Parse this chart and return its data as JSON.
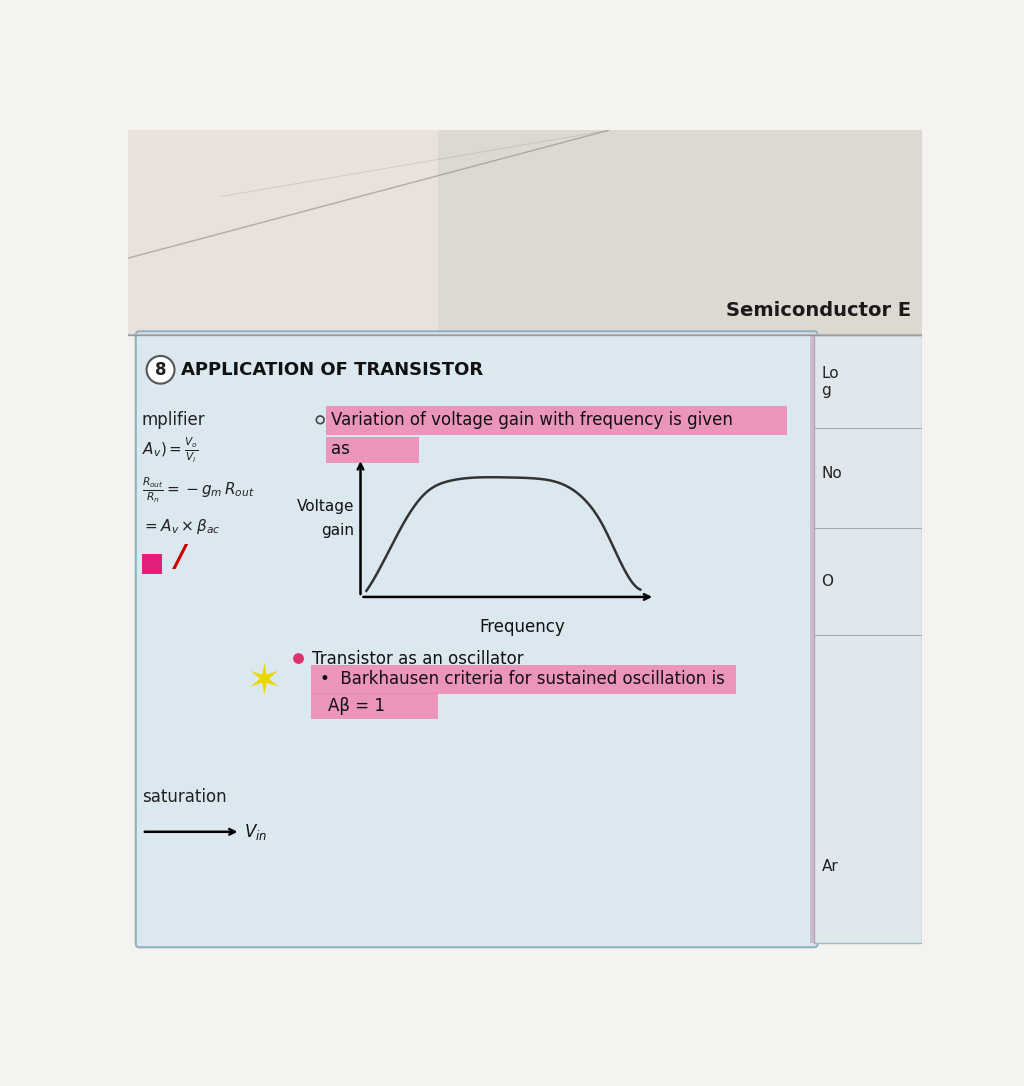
{
  "page_bg_top": "#e8e4de",
  "page_bg_main": "#f5f3f0",
  "header_text": "Semiconductor E",
  "section_num": "8",
  "section_title": "APPLICATION OF TRANSISTOR",
  "highlight_pink": "#f080b0",
  "highlight_yellow": "#f0e040",
  "bullet1_line1": "Variation of voltage gain with frequency is given",
  "bullet1_line2": "as",
  "xlabel": "Frequency",
  "ylabel_line1": "Voltage",
  "ylabel_line2": "gain",
  "bullet2_title": "Transistor as an oscillator",
  "bullet2_sub": "Barkhausen criteria for sustained oscillation is",
  "bullet2_eq": "Aβ = 1",
  "bottom_left1": "saturation",
  "card_bg": "#dce8f0",
  "card_border": "#90b0c0",
  "right_bg": "#e0e8ee",
  "right_border": "#a0b8c8",
  "pink_box_color": "#e040a0",
  "red_slash_color": "#cc1111",
  "left_text_color": "#222222",
  "graph_line_color": "#333333"
}
